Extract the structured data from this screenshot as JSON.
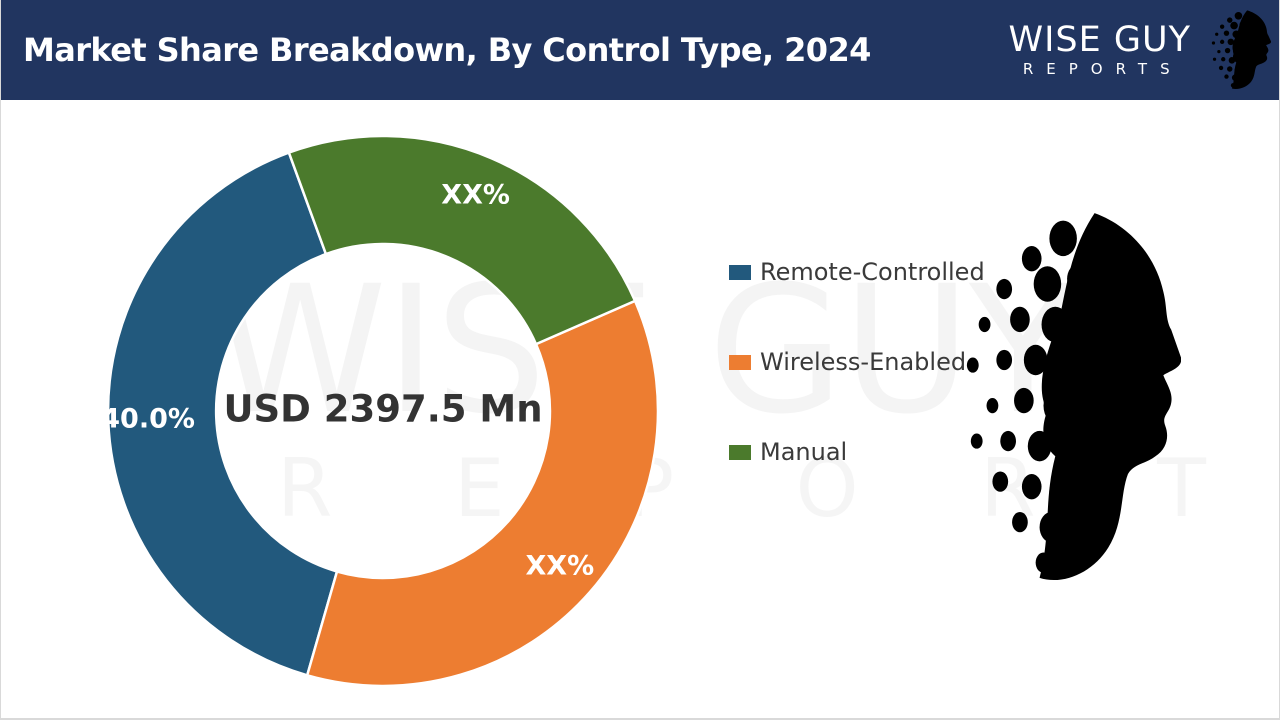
{
  "header": {
    "title": "Market Share Breakdown, By Control Type, 2024",
    "bg_color": "#213560",
    "logo": {
      "brand": "WISE GUY",
      "sub": "REPORTS"
    }
  },
  "chart_data": {
    "type": "donut",
    "title": "Market Share Breakdown, By Control Type, 2024",
    "center_label": "USD 2397.5 Mn",
    "start_angle_deg": 110,
    "direction": "counterclockwise",
    "legend_position": "right",
    "segments": [
      {
        "label": "Remote-Controlled",
        "value_pct": 40.0,
        "display_label": "40.0%",
        "color": "#22597D"
      },
      {
        "label": "Wireless-Enabled",
        "value_pct": 36.0,
        "display_label": "XX%",
        "color": "#ED7D31"
      },
      {
        "label": "Manual",
        "value_pct": 24.0,
        "display_label": "XX%",
        "color": "#4B7A2C"
      }
    ]
  },
  "watermark": {
    "line1": "WISE GUY",
    "line2": "R E P O R T S"
  }
}
